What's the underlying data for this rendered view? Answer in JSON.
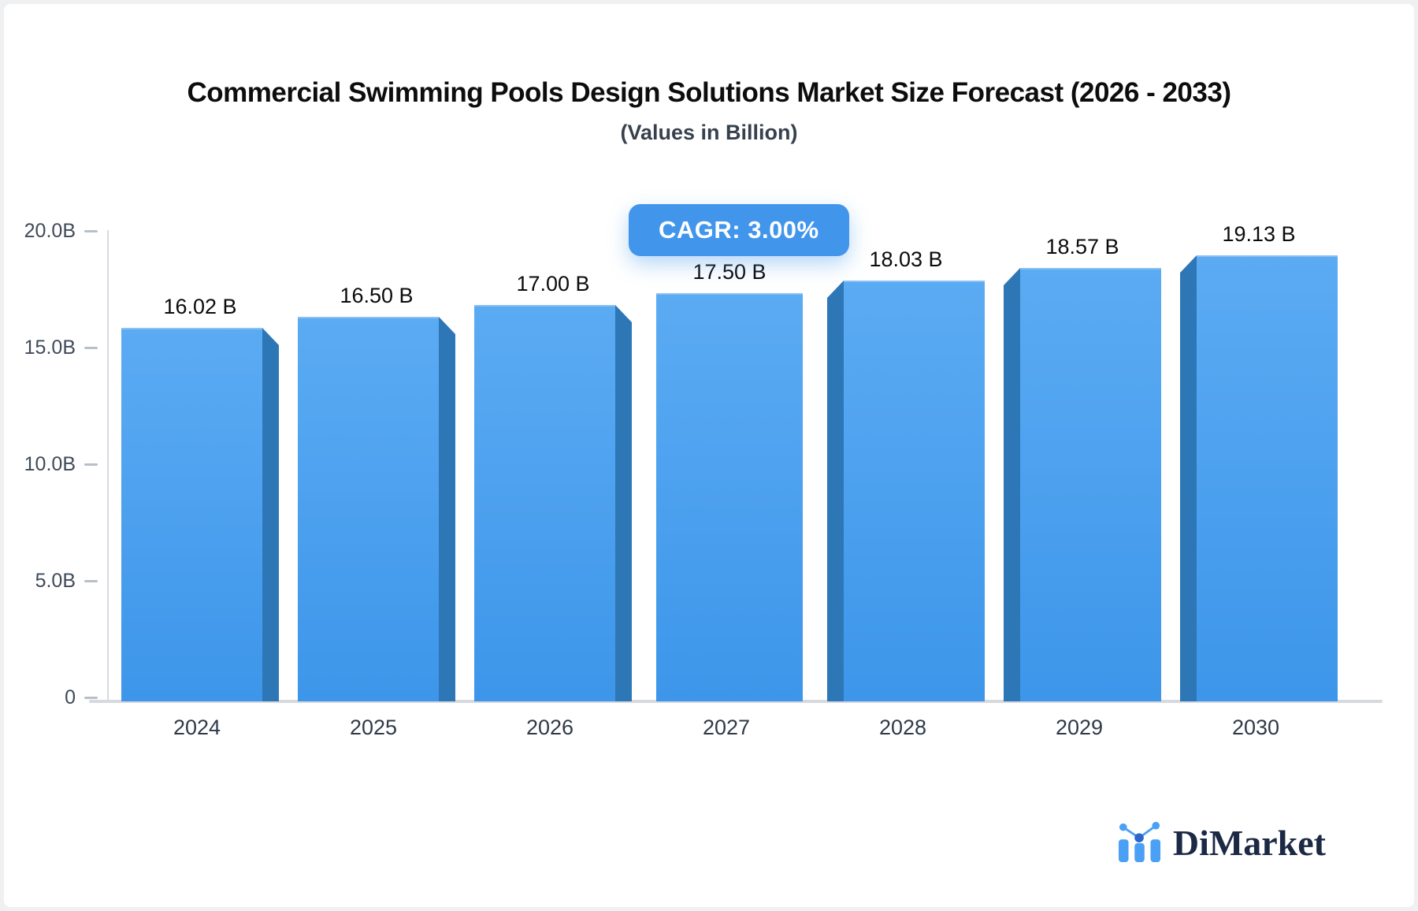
{
  "header": {
    "title": "Commercial Swimming Pools Design Solutions Market Size Forecast (2026 - 2033)",
    "subtitle": "(Values in Billion)"
  },
  "badge": {
    "label": "CAGR: 3.00%"
  },
  "chart_data": {
    "type": "bar",
    "title": "Commercial Swimming Pools Design Solutions Market Size Forecast (2026 - 2033)",
    "subtitle": "(Values in Billion)",
    "categories": [
      "2024",
      "2025",
      "2026",
      "2027",
      "2028",
      "2029",
      "2030"
    ],
    "values": [
      16.02,
      16.5,
      17.0,
      17.5,
      18.03,
      18.57,
      19.13
    ],
    "value_labels": [
      "16.02 B",
      "16.50 B",
      "17.00 B",
      "17.50 B",
      "18.03 B",
      "18.57 B",
      "19.13 B"
    ],
    "unit": "Billion",
    "ylim": [
      0,
      20
    ],
    "yticks": [
      {
        "label": "0",
        "value": 0
      },
      {
        "label": "5.0B",
        "value": 5
      },
      {
        "label": "10.0B",
        "value": 10
      },
      {
        "label": "15.0B",
        "value": 15
      },
      {
        "label": "20.0B",
        "value": 20
      }
    ],
    "grid": false,
    "legend": false,
    "annotation": "CAGR: 3.00%"
  },
  "logo": {
    "text": "DiMarket",
    "icon": "mini-bar-chart-logo-icon"
  },
  "colors": {
    "bar_top": "#5babf3",
    "bar_bottom": "#3d96ea",
    "bar_side": "#2e77b7",
    "badge_bg": "#4196ec",
    "badge_text": "#ffffff",
    "axis_line": "#d6d9de",
    "tick_text": "#3f4a59",
    "year_text": "#2f3a48",
    "title_text": "#0d0d0d",
    "subtitle_text": "#37414e",
    "value_text": "#0b0b0b",
    "logo_text": "#1b2944",
    "logo_accent": "#4aa0f5",
    "logo_dot": "#2c66c9"
  }
}
